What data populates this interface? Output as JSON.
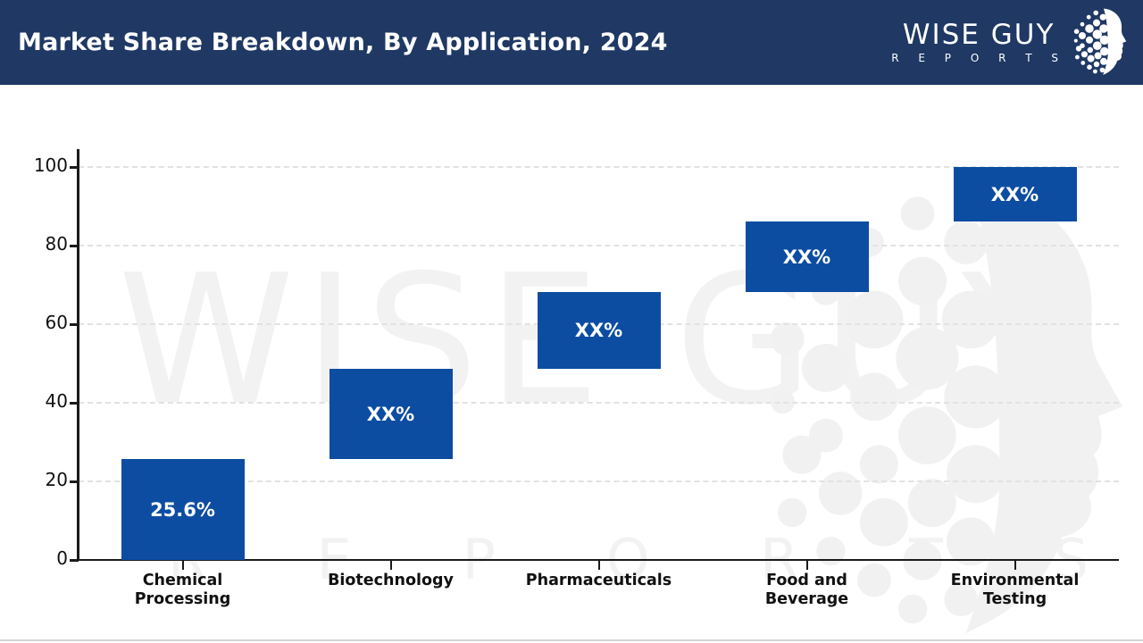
{
  "header": {
    "title": "Market Share Breakdown, By Application, 2024",
    "logo": {
      "line1": "WISE GUY",
      "line2": "R E P O R T S"
    }
  },
  "watermark": {
    "line1": "WISE GUY",
    "line2": "R E P O R T S"
  },
  "colors": {
    "header_bg": "#1f3864",
    "bar": "#0c4da2",
    "bar_value_text": "#ffffff",
    "axis": "#1a1a1a",
    "grid": "#e2e2e2",
    "watermark": "#f2f2f2",
    "footer_line": "#d4d4d4",
    "title_text": "#ffffff"
  },
  "chart_data": {
    "type": "bar",
    "subtype": "floating-waterfall",
    "title": "Market Share Breakdown, By Application, 2024",
    "categories": [
      "Chemical Processing",
      "Biotechnology",
      "Pharmaceuticals",
      "Food and Beverage",
      "Environmental Testing"
    ],
    "bars": [
      {
        "category": "Chemical Processing",
        "start": 0,
        "end": 25.6,
        "value_label": "25.6%"
      },
      {
        "category": "Biotechnology",
        "start": 25.6,
        "end": 48.6,
        "value_label": "XX%"
      },
      {
        "category": "Pharmaceuticals",
        "start": 48.6,
        "end": 68.2,
        "value_label": "XX%"
      },
      {
        "category": "Food and Beverage",
        "start": 68.2,
        "end": 86.1,
        "value_label": "XX%"
      },
      {
        "category": "Environmental Testing",
        "start": 86.1,
        "end": 100,
        "value_label": "XX%"
      }
    ],
    "yticks": [
      0,
      20,
      40,
      60,
      80,
      100
    ],
    "ylim": [
      0,
      104
    ],
    "xlabel": "",
    "ylabel": "",
    "grid": "horizontal-dashed",
    "legend": "none",
    "bar_color": "#0c4da2"
  }
}
